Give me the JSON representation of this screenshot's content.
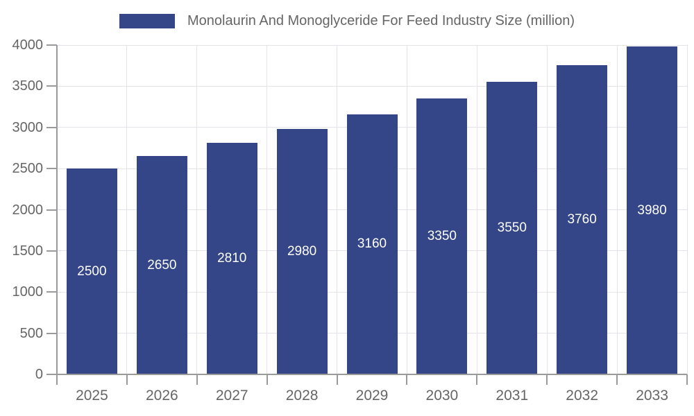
{
  "chart_data": {
    "type": "bar",
    "title": "Monolaurin And Monoglyceride For Feed Industry Size (million)",
    "categories": [
      "2025",
      "2026",
      "2027",
      "2028",
      "2029",
      "2030",
      "2031",
      "2032",
      "2033"
    ],
    "values": [
      2500,
      2650,
      2810,
      2980,
      3160,
      3350,
      3550,
      3760,
      3980
    ],
    "xlabel": "",
    "ylabel": "",
    "ylim": [
      0,
      4000
    ],
    "yticks": [
      0,
      500,
      1000,
      1500,
      2000,
      2500,
      3000,
      3500,
      4000
    ],
    "grid": true,
    "legend_position": "top",
    "value_labels_shown": true
  },
  "legend": {
    "label": "Monolaurin And Monoglyceride For Feed Industry Size (million)"
  },
  "colors": {
    "background": "#ffffff",
    "bar": "#344687",
    "grid": "#e3e3e9",
    "axis": "#9a9a9a",
    "tick_label": "#666666",
    "title": "#666666",
    "value_label": "#ffffff"
  }
}
